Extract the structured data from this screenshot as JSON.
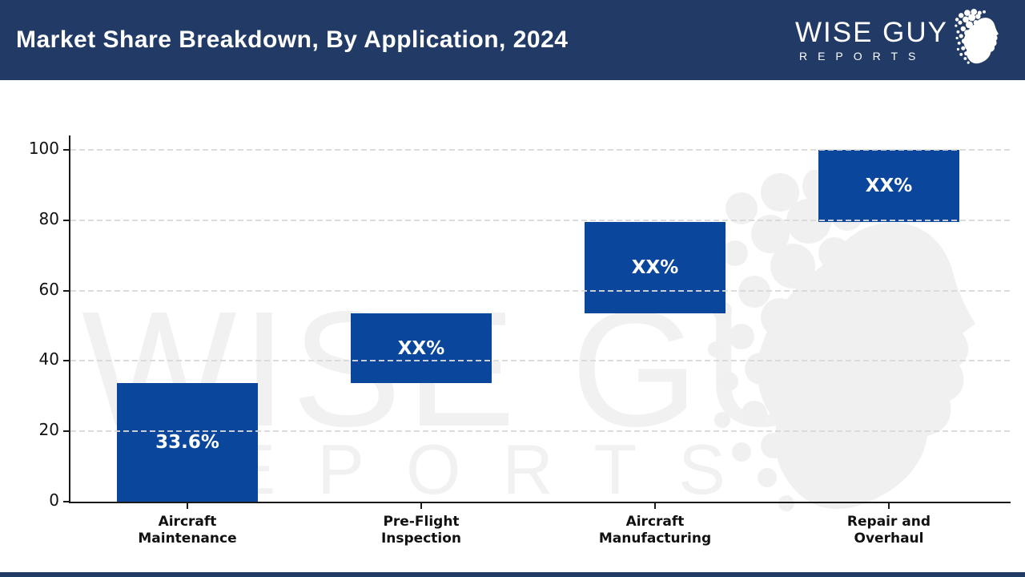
{
  "header": {
    "title": "Market Share Breakdown, By Application, 2024",
    "brand": {
      "wordmark": "WISE GUY",
      "wordmark2": "REPORTS"
    }
  },
  "watermark": {
    "line1": "WISE GUY",
    "line2": "REPORTS"
  },
  "chart_data": {
    "type": "bar",
    "subtype": "waterfall",
    "title": "Market Share Breakdown, By Application, 2024",
    "categories": [
      "Aircraft Maintenance",
      "Pre-Flight Inspection",
      "Aircraft Manufacturing",
      "Repair and Overhaul"
    ],
    "category_label_lines": [
      [
        "Aircraft",
        "Maintenance"
      ],
      [
        "Pre-Flight",
        "Inspection"
      ],
      [
        "Aircraft",
        "Manufacturing"
      ],
      [
        "Repair and",
        "Overhaul"
      ]
    ],
    "segments": [
      {
        "category": "Aircraft Maintenance",
        "start": 0,
        "end": 33.6,
        "value_label": "33.6%"
      },
      {
        "category": "Pre-Flight Inspection",
        "start": 33.6,
        "end": 53.5,
        "value_label": "XX%"
      },
      {
        "category": "Aircraft Manufacturing",
        "start": 53.5,
        "end": 79.5,
        "value_label": "XX%"
      },
      {
        "category": "Repair and Overhaul",
        "start": 79.5,
        "end": 100,
        "value_label": "XX%"
      }
    ],
    "xlabel": "",
    "ylabel": "",
    "ylim": [
      0,
      100
    ],
    "yticks": [
      0,
      20,
      40,
      60,
      80,
      100
    ],
    "grid": {
      "horizontal": true,
      "style": "dashed"
    },
    "legend": "none",
    "colors": {
      "bar": "#0a479c",
      "bar_label": "#ffffff",
      "grid": "#d9d9d9",
      "axis": "#1a1a1a",
      "tick_label": "#111111",
      "header_bg": "#213a66",
      "watermark": "#f1f1f1"
    }
  }
}
